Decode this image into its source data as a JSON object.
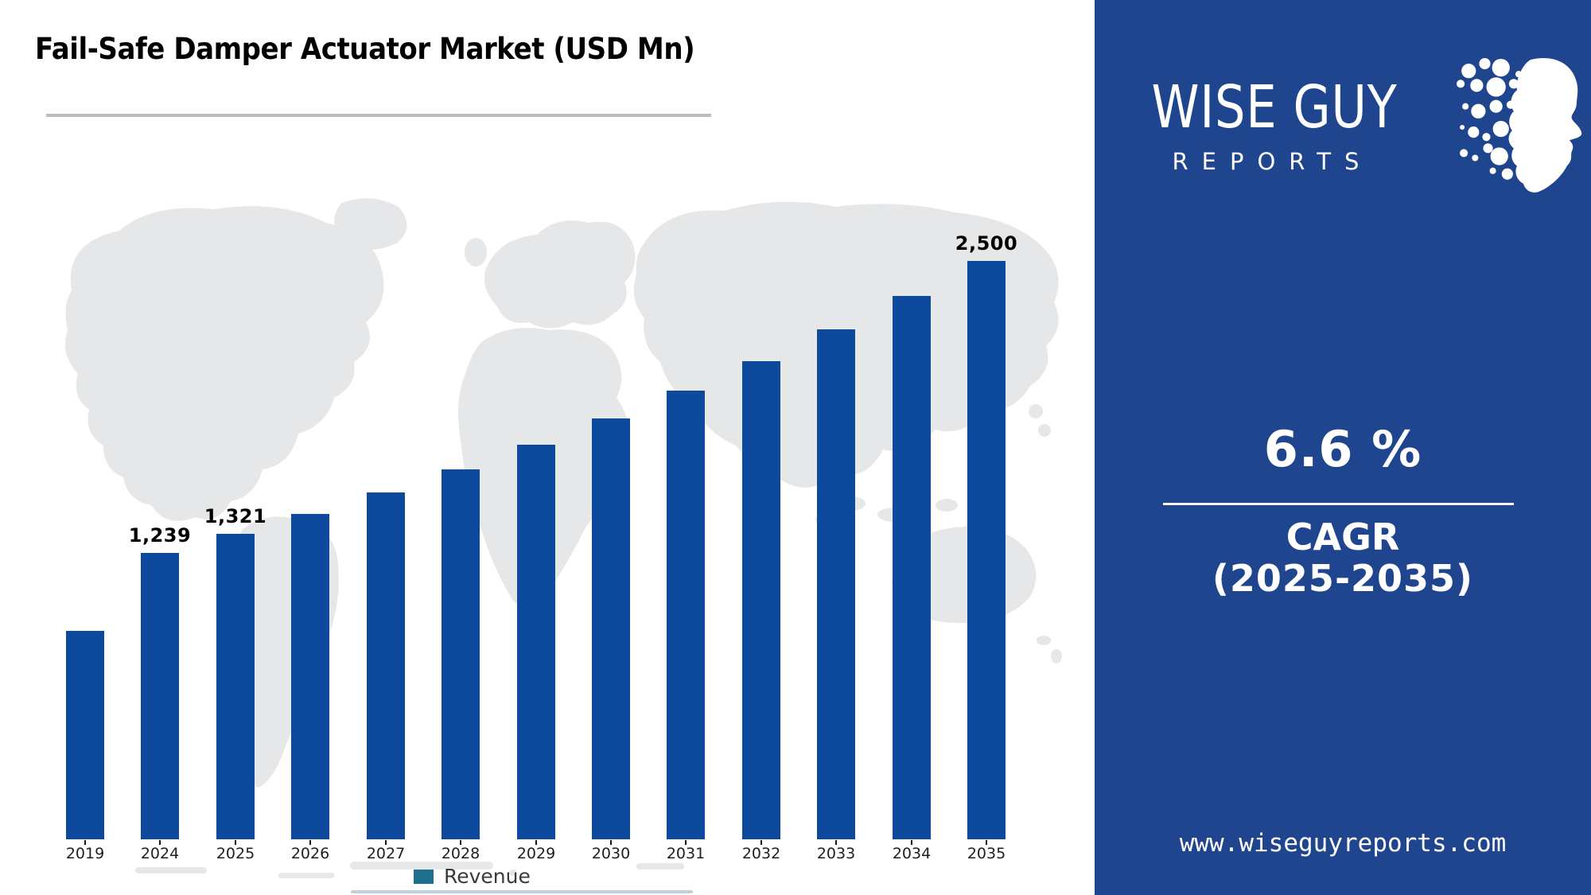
{
  "title": "Fail-Safe Damper Actuator Market (USD Mn)",
  "chart_data": {
    "type": "bar",
    "title": "Fail-Safe Damper Actuator Market (USD Mn)",
    "unit": "USD Mn",
    "categories": [
      "2019",
      "2024",
      "2025",
      "2026",
      "2027",
      "2028",
      "2029",
      "2030",
      "2031",
      "2032",
      "2033",
      "2034",
      "2035"
    ],
    "values": [
      900,
      1239,
      1321,
      1408,
      1501,
      1600,
      1706,
      1818,
      1938,
      2066,
      2203,
      2348,
      2500
    ],
    "bar_labels": {
      "2024": "1,239",
      "2025": "1,321",
      "2035": "2,500"
    },
    "xlabel": "",
    "ylabel": "",
    "ylim": [
      0,
      2580
    ],
    "grid": false,
    "bar_color": "#0d4a9e",
    "legend_position": "bottom",
    "legend": [
      {
        "label": "Revenue",
        "color": "#1f6e8e"
      }
    ]
  },
  "legend": {
    "label": "Revenue"
  },
  "sidebar": {
    "brand": {
      "line1": "WISE GUY",
      "line2": "REPORTS"
    },
    "cagr": {
      "value": "6.6 %",
      "label": "CAGR",
      "period": "(2025-2035)"
    },
    "website": "www.wiseguyreports.com"
  },
  "colors": {
    "bar": "#0d4a9e",
    "panel_bg": "#1f458e",
    "legend_swatch": "#1f6e8e",
    "map": "#e5e7e9",
    "title_rule": "#bcbcbc"
  }
}
